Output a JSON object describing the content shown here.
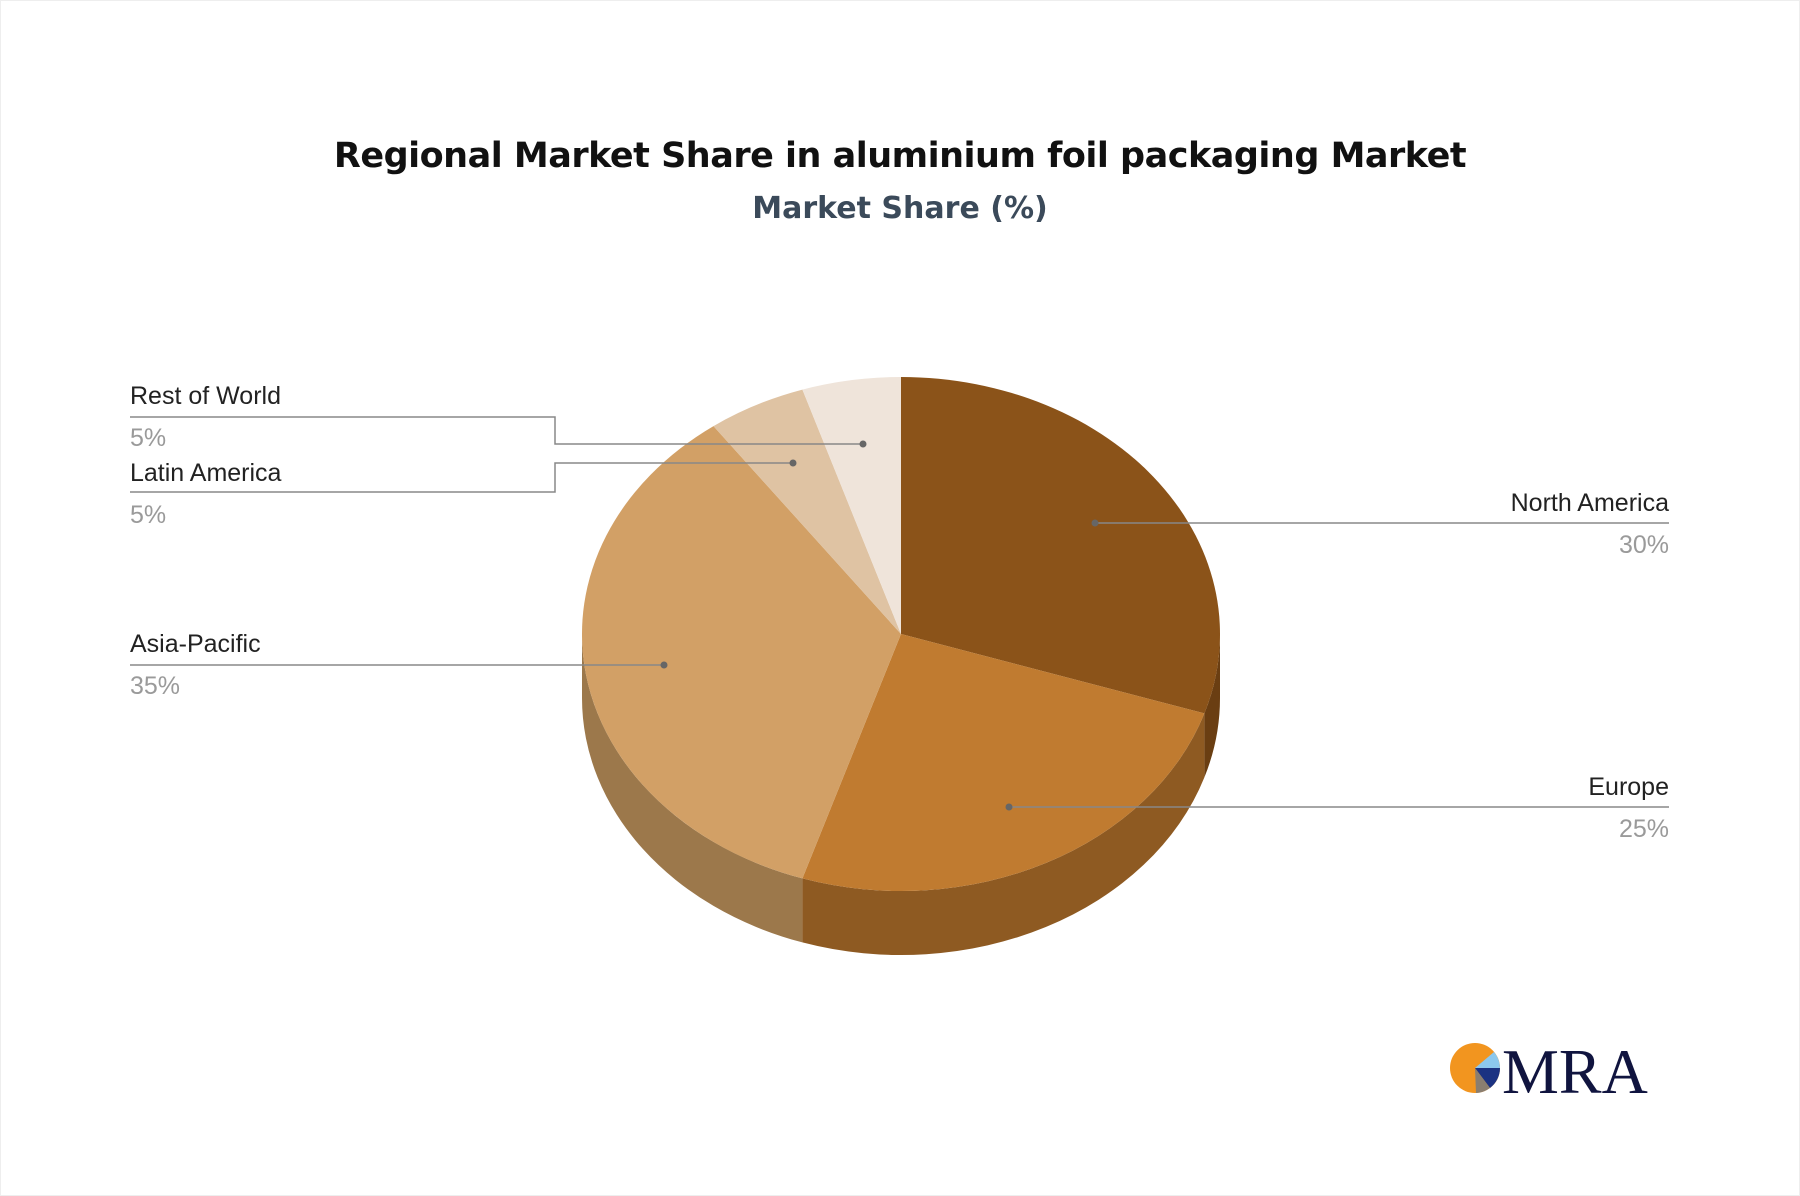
{
  "chart_data": {
    "type": "pie",
    "style": "3d",
    "title": "Regional Market Share in aluminium foil packaging Market",
    "subtitle": "Market Share (%)",
    "slices": [
      {
        "name": "North America",
        "value": 30,
        "label": "30%",
        "color": "#8B5319",
        "side": "#6A3E12"
      },
      {
        "name": "Europe",
        "value": 25,
        "label": "25%",
        "color": "#C07B30",
        "side": "#8E5A22"
      },
      {
        "name": "Asia-Pacific",
        "value": 35,
        "label": "35%",
        "color": "#D2A066",
        "side": "#9C784B"
      },
      {
        "name": "Latin America",
        "value": 5,
        "label": "5%",
        "color": "#DFC3A3",
        "side": "#B09A80"
      },
      {
        "name": "Rest of World",
        "value": 5,
        "label": "5%",
        "color": "#EFE4DA",
        "side": "#C8BDB2"
      }
    ]
  },
  "logo": {
    "text": "MRA"
  }
}
